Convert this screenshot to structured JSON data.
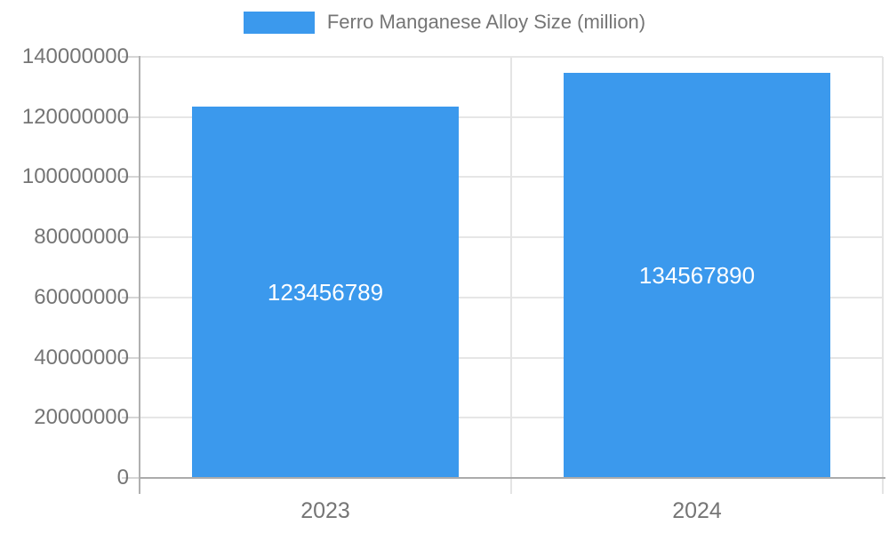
{
  "chart_data": {
    "type": "bar",
    "title": "",
    "legend": {
      "label": "Ferro Manganese Alloy Size (million)",
      "position": "top"
    },
    "categories": [
      "2023",
      "2024"
    ],
    "series": [
      {
        "name": "Ferro Manganese Alloy Size (million)",
        "values": [
          123456789,
          134567890
        ]
      }
    ],
    "data_labels": [
      "123456789",
      "134567890"
    ],
    "y_axis": {
      "min": 0,
      "max": 140000000,
      "step": 20000000,
      "ticks": [
        {
          "value": 0,
          "label": "0"
        },
        {
          "value": 20000000,
          "label": "20000000"
        },
        {
          "value": 40000000,
          "label": "40000000"
        },
        {
          "value": 60000000,
          "label": "60000000"
        },
        {
          "value": 80000000,
          "label": "80000000"
        },
        {
          "value": 100000000,
          "label": "100000000"
        },
        {
          "value": 120000000,
          "label": "120000000"
        },
        {
          "value": 140000000,
          "label": "140000000"
        }
      ]
    },
    "grid": true,
    "colors": {
      "bar": "#3B99ED",
      "label_text": "#ffffff",
      "axis_text": "#757575",
      "gridline": "#e6e6e6",
      "tick": "#d6d6d6",
      "axis_line": "#b0b0b0",
      "x_axis_line": "#ababab",
      "boundary_line": "#e4e4e4",
      "background": "#ffffff"
    }
  }
}
